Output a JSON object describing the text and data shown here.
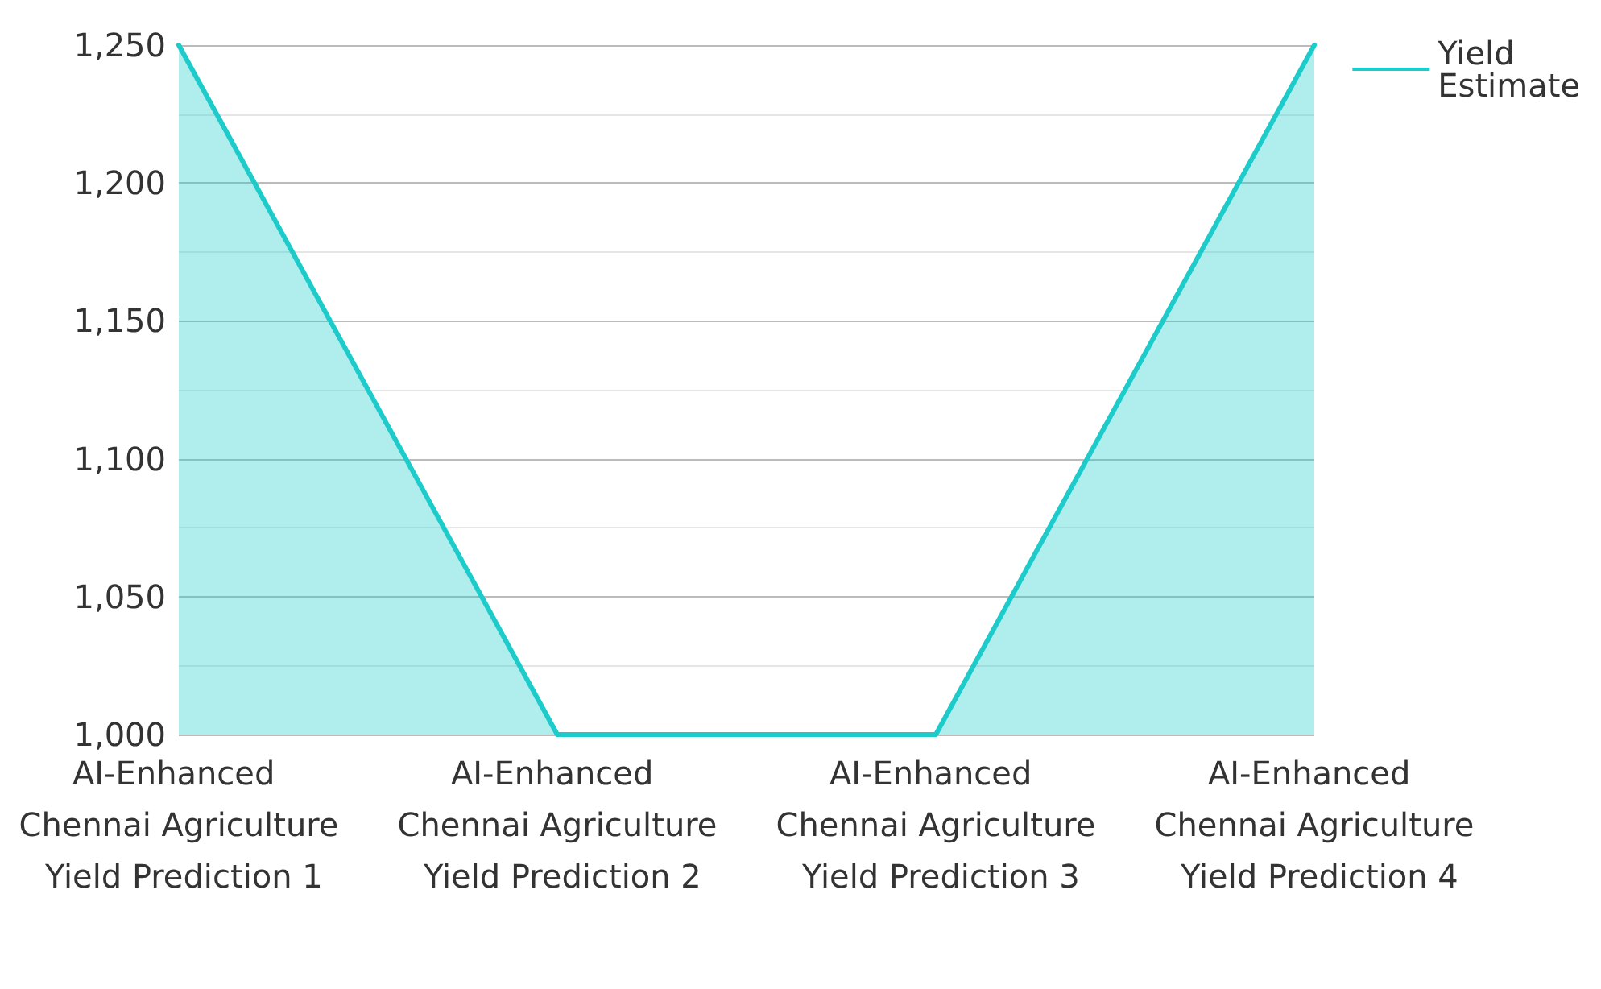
{
  "chart_data": {
    "type": "area",
    "categories": [
      "AI-Enhanced Chennai Agriculture Yield Prediction 1",
      "AI-Enhanced Chennai Agriculture Yield Prediction 2",
      "AI-Enhanced Chennai Agriculture Yield Prediction 3",
      "AI-Enhanced Chennai Agriculture Yield Prediction 4"
    ],
    "series": [
      {
        "name": "Yield Estimate",
        "color": "#1ecbcb",
        "values": [
          1250,
          1000,
          1000,
          1250
        ]
      }
    ],
    "ylim": [
      1000,
      1250
    ],
    "yticks": [
      {
        "value": 1000,
        "label": "1,000"
      },
      {
        "value": 1050,
        "label": "1,050"
      },
      {
        "value": 1100,
        "label": "1,100"
      },
      {
        "value": 1150,
        "label": "1,150"
      },
      {
        "value": 1200,
        "label": "1,200"
      },
      {
        "value": 1250,
        "label": "1,250"
      }
    ],
    "grid": "y",
    "legend": "top right",
    "marker": "none",
    "line_style": "solid"
  }
}
